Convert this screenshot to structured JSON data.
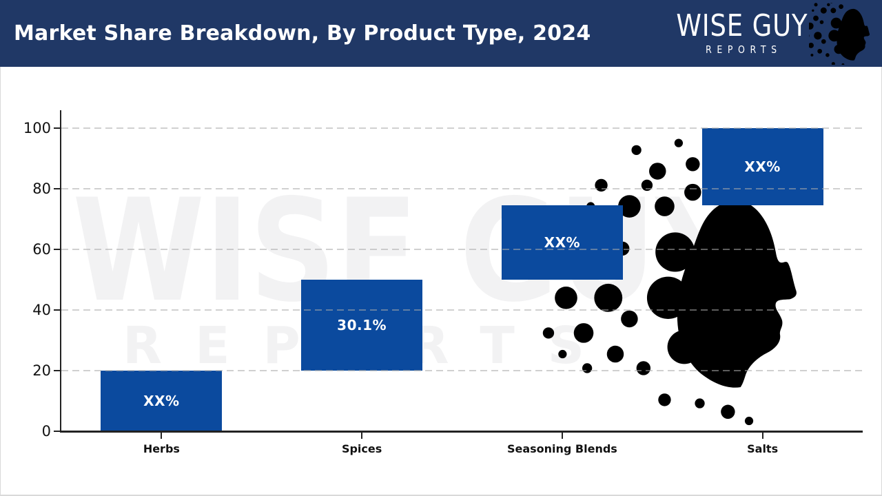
{
  "header": {
    "title": "Market Share Breakdown, By Product Type, 2024",
    "logo": {
      "line1": "WISE GUY",
      "line2": "REPORTS"
    }
  },
  "watermark": {
    "line1": "WISE GUY",
    "line2": "REPORTS"
  },
  "chart_data": {
    "type": "bar",
    "subtype": "waterfall",
    "title": "Market Share Breakdown, By Product Type, 2024",
    "categories": [
      "Herbs",
      "Spices",
      "Seasoning Blends",
      "Salts"
    ],
    "bars": [
      {
        "category": "Herbs",
        "start": 0,
        "end": 20,
        "label": "XX%"
      },
      {
        "category": "Spices",
        "start": 20,
        "end": 50.1,
        "label": "30.1%"
      },
      {
        "category": "Seasoning Blends",
        "start": 50.1,
        "end": 74.6,
        "label": "XX%"
      },
      {
        "category": "Salts",
        "start": 74.6,
        "end": 100,
        "label": "XX%"
      }
    ],
    "yticks": [
      0,
      20,
      40,
      60,
      80,
      100
    ],
    "ylim": [
      0,
      106
    ],
    "xlabel": "",
    "ylabel": "",
    "grid": true,
    "gridline_style": "dashed",
    "legend": null,
    "bar_color": "#0b4a9e",
    "bar_label_color": "#ffffff",
    "background": "#ffffff"
  },
  "colors": {
    "header_bg": "#203866",
    "bar": "#0b4a9e",
    "watermark": "#f2f2f3",
    "grid": "#aaaaaa",
    "axis": "#222222",
    "page_border": "#d9d9d9"
  }
}
